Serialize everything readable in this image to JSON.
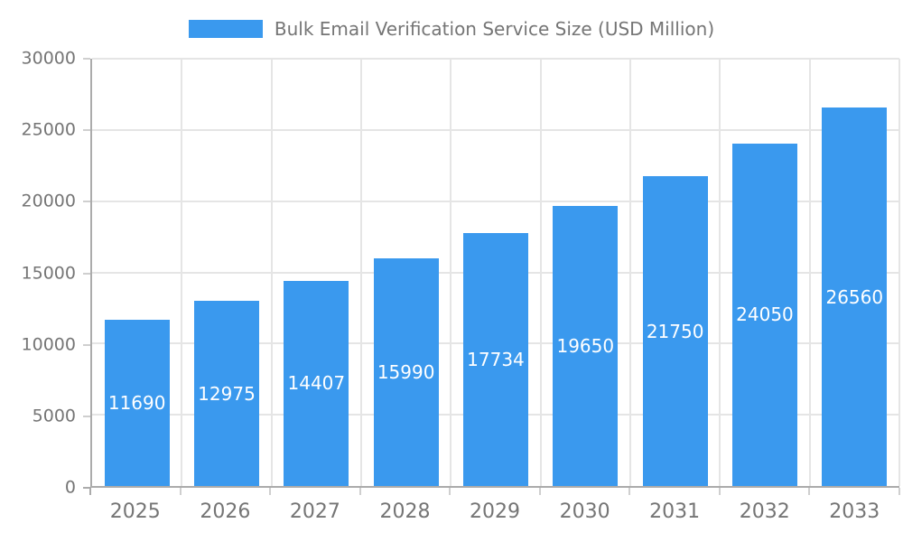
{
  "colors": {
    "bar": "#3A99EE",
    "bar_label": "#FFFFFF",
    "grid": "#E5E5E5",
    "axis": "#ABABAB",
    "tick": "#CFCFCF",
    "text": "#757575",
    "background": "#FFFFFF"
  },
  "chart_data": {
    "type": "bar",
    "title": "Bulk Email Verification Service Size (USD Million)",
    "categories": [
      "2025",
      "2026",
      "2027",
      "2028",
      "2029",
      "2030",
      "2031",
      "2032",
      "2033"
    ],
    "series": [
      {
        "name": "Bulk Email Verification Service Size (USD Million)",
        "values": [
          11690,
          12975,
          14407,
          15990,
          17734,
          19650,
          21750,
          24050,
          26560
        ]
      }
    ],
    "xlabel": "",
    "ylabel": "",
    "ylim": [
      0,
      30000
    ],
    "y_ticks": [
      0,
      5000,
      10000,
      15000,
      20000,
      25000,
      30000
    ],
    "grid": true,
    "legend_position": "top",
    "value_labels": "inside-center"
  }
}
